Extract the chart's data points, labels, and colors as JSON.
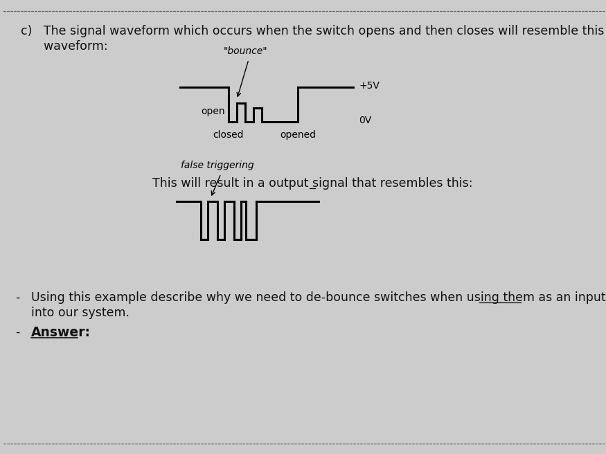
{
  "bg_color": "#cccccc",
  "title_line1": "c)   The signal waveform which occurs when the switch opens and then closes will resemble this",
  "title_line2": "      waveform:",
  "mid_text": "This will result in a output signal that resembles this:",
  "bullet1_line1": "Using this example describe why we need to de-bounce switches when using them as an inputs",
  "bullet1_line2": "into our system.",
  "bullet2": "Answer:",
  "bounce_label": "\"bounce\"",
  "plus5v_label": "+5V",
  "ov_label": "0V",
  "open_label": "open",
  "closed_label": "closed",
  "opened_label": "opened",
  "false_trigger_label": "false triggering",
  "dotted_color": "#666666",
  "line_color": "#000000",
  "text_color": "#111111",
  "font_size": 12.5
}
